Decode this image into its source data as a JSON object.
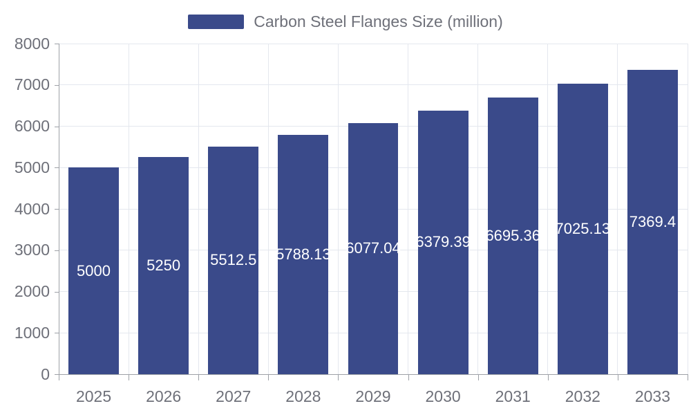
{
  "legend": {
    "label": "Carbon Steel Flanges Size (million)"
  },
  "chart_data": {
    "type": "bar",
    "title": "Carbon Steel Flanges Size (million)",
    "categories": [
      "2025",
      "2026",
      "2027",
      "2028",
      "2029",
      "2030",
      "2031",
      "2032",
      "2033"
    ],
    "values": [
      5000,
      5250,
      5512.5,
      5788.13,
      6077.04,
      6379.39,
      6695.36,
      7025.13,
      7369.4
    ],
    "value_labels": [
      "5000",
      "5250",
      "5512.5",
      "5788.13",
      "6077.04",
      "6379.39",
      "6695.36",
      "7025.13",
      "7369.4"
    ],
    "series_name": "Carbon Steel Flanges Size (million)",
    "xlabel": "",
    "ylabel": "",
    "ylim": [
      0,
      8000
    ],
    "ytick_step": 1000,
    "ytick_labels": [
      "0",
      "1000",
      "2000",
      "3000",
      "4000",
      "5000",
      "6000",
      "7000",
      "8000"
    ],
    "grid": true,
    "legend_position": "top-center",
    "colors": {
      "bar": "#3A4A8A",
      "value_label": "#FFFFFF",
      "axis_label": "#6E7079",
      "legend_text": "#6E7079",
      "axis_line": "#9DA0A6",
      "grid_line": "#E4E7EE",
      "background": "#FFFFFF"
    }
  }
}
